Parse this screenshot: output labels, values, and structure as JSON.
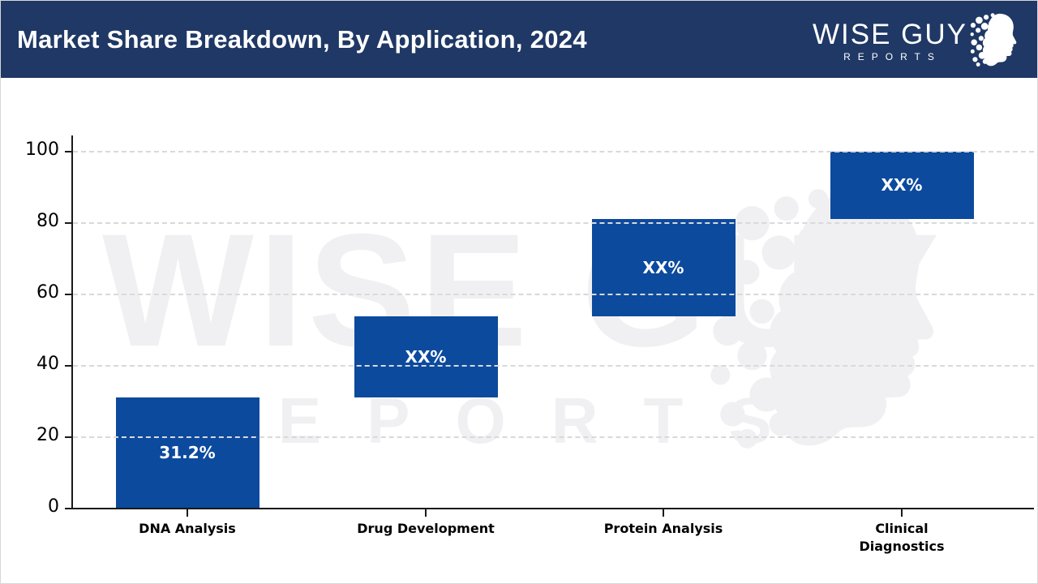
{
  "header": {
    "title": "Market Share Breakdown, By Application, 2024",
    "logo": {
      "line1": "WISE GUY",
      "line2": "REPORTS"
    }
  },
  "watermark": {
    "line1": "WISE GUY",
    "line2": "REPORTS"
  },
  "colors": {
    "header_bg": "#1F3865",
    "bar": "#0C4A9E",
    "watermark": "#F0F0F2",
    "grid": "#D9D9DB",
    "axis": "#1A1A1A",
    "bar_label_text": "#FFFFFF"
  },
  "chart_data": {
    "type": "bar",
    "subtype": "waterfall",
    "title": "Market Share Breakdown, By Application, 2024",
    "categories": [
      "DNA Analysis",
      "Drug Development",
      "Protein Analysis",
      "Clinical\nDiagnostics"
    ],
    "series": [
      {
        "name": "Market Share (%)",
        "segments": [
          {
            "category": "DNA Analysis",
            "start": 0,
            "end": 31.2,
            "label": "31.2%"
          },
          {
            "category": "Drug Development",
            "start": 31.2,
            "end": 53.7,
            "label": "XX%"
          },
          {
            "category": "Protein Analysis",
            "start": 53.7,
            "end": 81.0,
            "label": "XX%"
          },
          {
            "category": "Clinical Diagnostics",
            "start": 81.0,
            "end": 100,
            "label": "XX%"
          }
        ]
      }
    ],
    "ylim": [
      0,
      100
    ],
    "yticks": [
      0,
      20,
      40,
      60,
      80,
      100
    ],
    "xlabel": "",
    "ylabel": "",
    "grid": "horizontal-dashed-over-bars",
    "legend": "none"
  }
}
